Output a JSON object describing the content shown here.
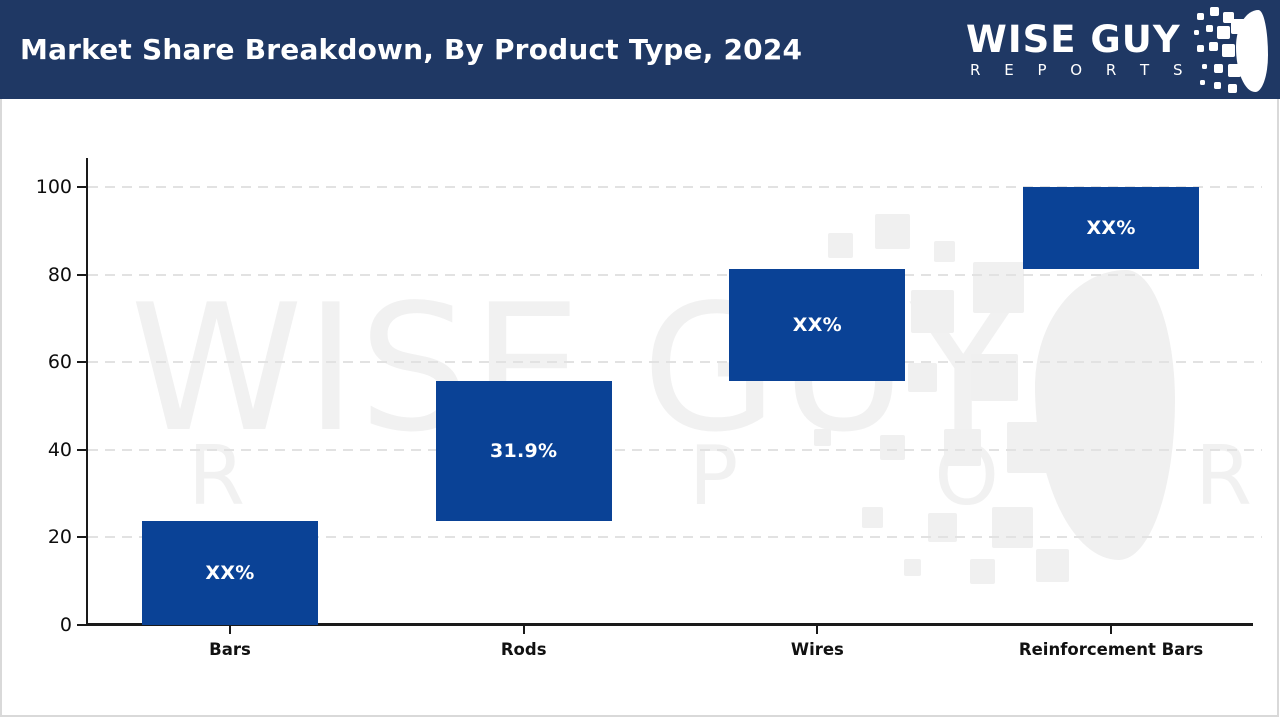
{
  "header": {
    "title": "Market Share Breakdown, By Product Type, 2024",
    "bg_color": "#1f3864",
    "logo": {
      "line1": "WISE GUY",
      "line2": "R E P O R T S"
    }
  },
  "watermark": {
    "line1": "WISE GUY",
    "line2": "R E P O R T S"
  },
  "chart_data": {
    "type": "bar",
    "subtype": "waterfall",
    "title": "Market Share Breakdown, By Product Type, 2024",
    "categories": [
      "Bars",
      "Rods",
      "Wires",
      "Reinforcement Bars"
    ],
    "segments": [
      {
        "category": "Bars",
        "start": 0,
        "end": 23.7,
        "label": "XX%"
      },
      {
        "category": "Rods",
        "start": 23.7,
        "end": 55.6,
        "label": "31.9%"
      },
      {
        "category": "Wires",
        "start": 55.6,
        "end": 81.3,
        "label": "XX%"
      },
      {
        "category": "Reinforcement Bars",
        "start": 81.3,
        "end": 100,
        "label": "XX%"
      }
    ],
    "yticks": [
      0,
      20,
      40,
      60,
      80,
      100
    ],
    "ylim": [
      0,
      100
    ],
    "xlabel": "",
    "ylabel": "",
    "grid": "dashed-horizontal",
    "legend": "none",
    "bar_color": "#0a4296",
    "bar_label_color": "#ffffff",
    "grid_color": "#e2e2e2",
    "axis_color": "#1a1a1a"
  }
}
